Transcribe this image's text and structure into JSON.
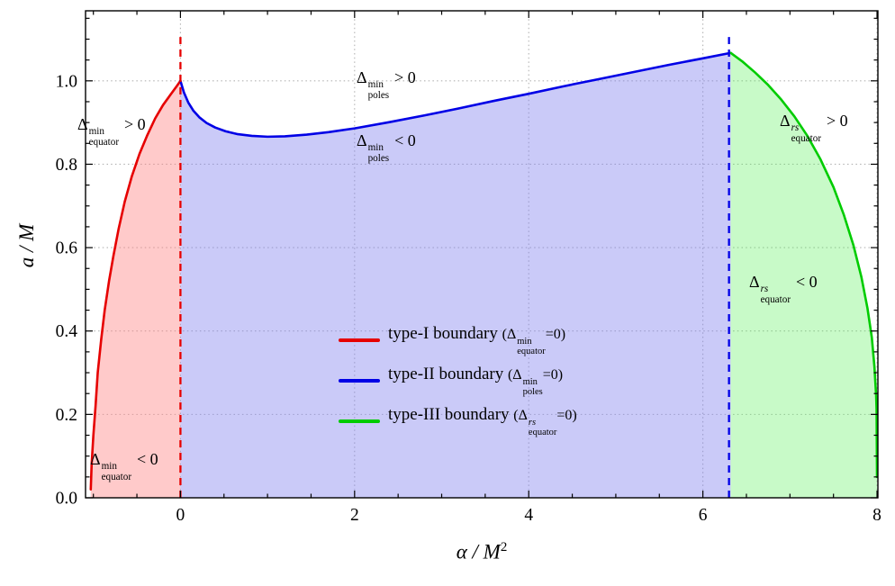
{
  "chart_data": {
    "type": "line",
    "title": "",
    "xlabel_parts": {
      "main": "α / M",
      "sup": "2"
    },
    "ylabel": "a / M",
    "xlim": [
      -1.09,
      8.01
    ],
    "ylim": [
      0,
      1.168
    ],
    "x_ticks": {
      "major": [
        0,
        2,
        4,
        6,
        8
      ],
      "labels": [
        "0",
        "2",
        "4",
        "6",
        "8"
      ],
      "minor_step": 0.5
    },
    "y_ticks": {
      "major": [
        0,
        0.2,
        0.4,
        0.6,
        0.8,
        1.0
      ],
      "labels": [
        "0.0",
        "0.2",
        "0.4",
        "0.6",
        "0.8",
        "1.0"
      ],
      "minor_step": 0.05
    },
    "grid": {
      "color": "#b3b3b3",
      "style": "dotted",
      "x_values": [
        0,
        2,
        4,
        6,
        8
      ],
      "y_values": [
        0.2,
        0.4,
        0.6,
        0.8,
        1.0
      ]
    },
    "series": [
      {
        "name": "type-I boundary",
        "color": "#e60000",
        "width": 2.6,
        "fill": "#ff8080",
        "fill_opacity": 0.42,
        "points": [
          [
            -1.03,
            0.02
          ],
          [
            -1.02,
            0.08
          ],
          [
            -1.0,
            0.15
          ],
          [
            -0.975,
            0.22
          ],
          [
            -0.95,
            0.3
          ],
          [
            -0.91,
            0.38
          ],
          [
            -0.87,
            0.45
          ],
          [
            -0.82,
            0.52
          ],
          [
            -0.77,
            0.58
          ],
          [
            -0.71,
            0.645
          ],
          [
            -0.64,
            0.71
          ],
          [
            -0.56,
            0.77
          ],
          [
            -0.47,
            0.825
          ],
          [
            -0.38,
            0.87
          ],
          [
            -0.29,
            0.91
          ],
          [
            -0.2,
            0.942
          ],
          [
            -0.11,
            0.968
          ],
          [
            -0.04,
            0.988
          ],
          [
            0,
            1.0
          ]
        ]
      },
      {
        "name": "type-II boundary",
        "color": "#0000e6",
        "width": 2.6,
        "fill": "#8080ee",
        "fill_opacity": 0.42,
        "points": [
          [
            0,
            1.0
          ],
          [
            0.04,
            0.972
          ],
          [
            0.09,
            0.948
          ],
          [
            0.15,
            0.928
          ],
          [
            0.22,
            0.912
          ],
          [
            0.3,
            0.899
          ],
          [
            0.4,
            0.888
          ],
          [
            0.52,
            0.879
          ],
          [
            0.66,
            0.872
          ],
          [
            0.82,
            0.868
          ],
          [
            1.0,
            0.866
          ],
          [
            1.2,
            0.867
          ],
          [
            1.45,
            0.871
          ],
          [
            1.7,
            0.877
          ],
          [
            2.0,
            0.886
          ],
          [
            2.4,
            0.901
          ],
          [
            2.8,
            0.917
          ],
          [
            3.2,
            0.934
          ],
          [
            3.6,
            0.952
          ],
          [
            4.0,
            0.969
          ],
          [
            4.4,
            0.987
          ],
          [
            4.8,
            1.004
          ],
          [
            5.2,
            1.021
          ],
          [
            5.6,
            1.038
          ],
          [
            6.0,
            1.054
          ],
          [
            6.32,
            1.067
          ]
        ]
      },
      {
        "name": "type-III boundary",
        "color": "#00cc00",
        "width": 2.6,
        "fill": "#55ee55",
        "fill_opacity": 0.32,
        "points": [
          [
            6.32,
            1.067
          ],
          [
            6.45,
            1.047
          ],
          [
            6.6,
            1.02
          ],
          [
            6.75,
            0.99
          ],
          [
            6.9,
            0.955
          ],
          [
            7.05,
            0.915
          ],
          [
            7.2,
            0.868
          ],
          [
            7.35,
            0.812
          ],
          [
            7.5,
            0.745
          ],
          [
            7.62,
            0.678
          ],
          [
            7.73,
            0.605
          ],
          [
            7.82,
            0.53
          ],
          [
            7.89,
            0.455
          ],
          [
            7.94,
            0.385
          ],
          [
            7.97,
            0.315
          ],
          [
            7.99,
            0.245
          ],
          [
            7.995,
            0.21
          ],
          [
            8.0,
            0.05
          ]
        ]
      }
    ],
    "vlines": [
      {
        "x": 0,
        "y0": 0,
        "y1": 1.105,
        "color": "#e60000",
        "dash": "8 6",
        "width": 2.3
      },
      {
        "x": 6.3,
        "y0": 0,
        "y1": 1.105,
        "color": "#0000e6",
        "dash": "8 6",
        "width": 2.3
      }
    ],
    "legend": [
      {
        "color": "#e60000",
        "prefix": "type-I boundary ",
        "open": "(",
        "sym": "Δ",
        "sup": "min",
        "sub": "equator",
        "close": "=0)"
      },
      {
        "color": "#0000e6",
        "prefix": "type-II boundary ",
        "open": "(",
        "sym": "Δ",
        "sup": "min",
        "sub": "poles",
        "close": "=0)"
      },
      {
        "color": "#00cc00",
        "prefix": "type-III boundary ",
        "open": "(",
        "sym": "Δ",
        "sup": "rs",
        "sub": "equator",
        "close": "=0)"
      }
    ],
    "annotations": [
      {
        "sym": "Δ",
        "sup": "min",
        "sub": "equator",
        "rel": "> 0"
      },
      {
        "sym": "Δ",
        "sup": "min",
        "sub": "equator",
        "rel": "< 0"
      },
      {
        "sym": "Δ",
        "sup": "min",
        "sub": "poles",
        "rel": "> 0"
      },
      {
        "sym": "Δ",
        "sup": "min",
        "sub": "poles",
        "rel": "< 0"
      },
      {
        "sym": "Δ",
        "sup": "rs",
        "sub": "equator",
        "rel": "> 0"
      },
      {
        "sym": "Δ",
        "sup": "rs",
        "sub": "equator",
        "rel": "< 0"
      }
    ]
  }
}
